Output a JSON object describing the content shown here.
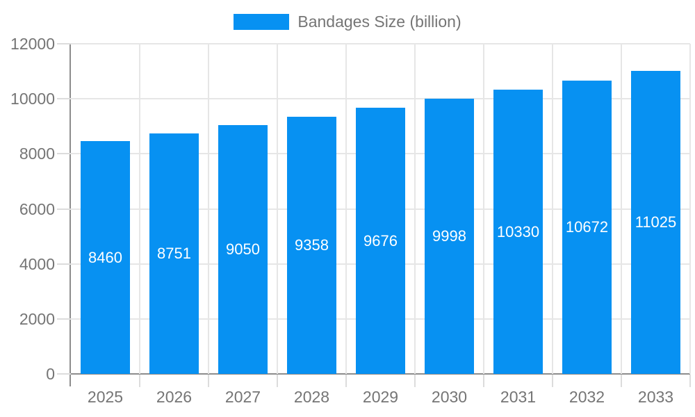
{
  "legend": {
    "label": "Bandages Size (billion)"
  },
  "chart_data": {
    "type": "bar",
    "title": "",
    "categories": [
      "2025",
      "2026",
      "2027",
      "2028",
      "2029",
      "2030",
      "2031",
      "2032",
      "2033"
    ],
    "series": [
      {
        "name": "Bandages Size (billion)",
        "values": [
          8460,
          8751,
          9050,
          9358,
          9676,
          9998,
          10330,
          10672,
          11025
        ]
      }
    ],
    "data_labels_shown": true,
    "xlabel": "",
    "ylabel": "",
    "ylim": [
      0,
      12000
    ],
    "yticks": [
      0,
      2000,
      4000,
      6000,
      8000,
      10000,
      12000
    ],
    "grid": true,
    "legend_position": "top-center"
  },
  "colors": {
    "bar": "#0791F2",
    "grid": "#E6E6E6",
    "axis": "#8C8C8C",
    "tick": "#DCDCDC",
    "text": "#757575",
    "bar_label": "#FFFFFF",
    "background": "#FFFFFF"
  }
}
